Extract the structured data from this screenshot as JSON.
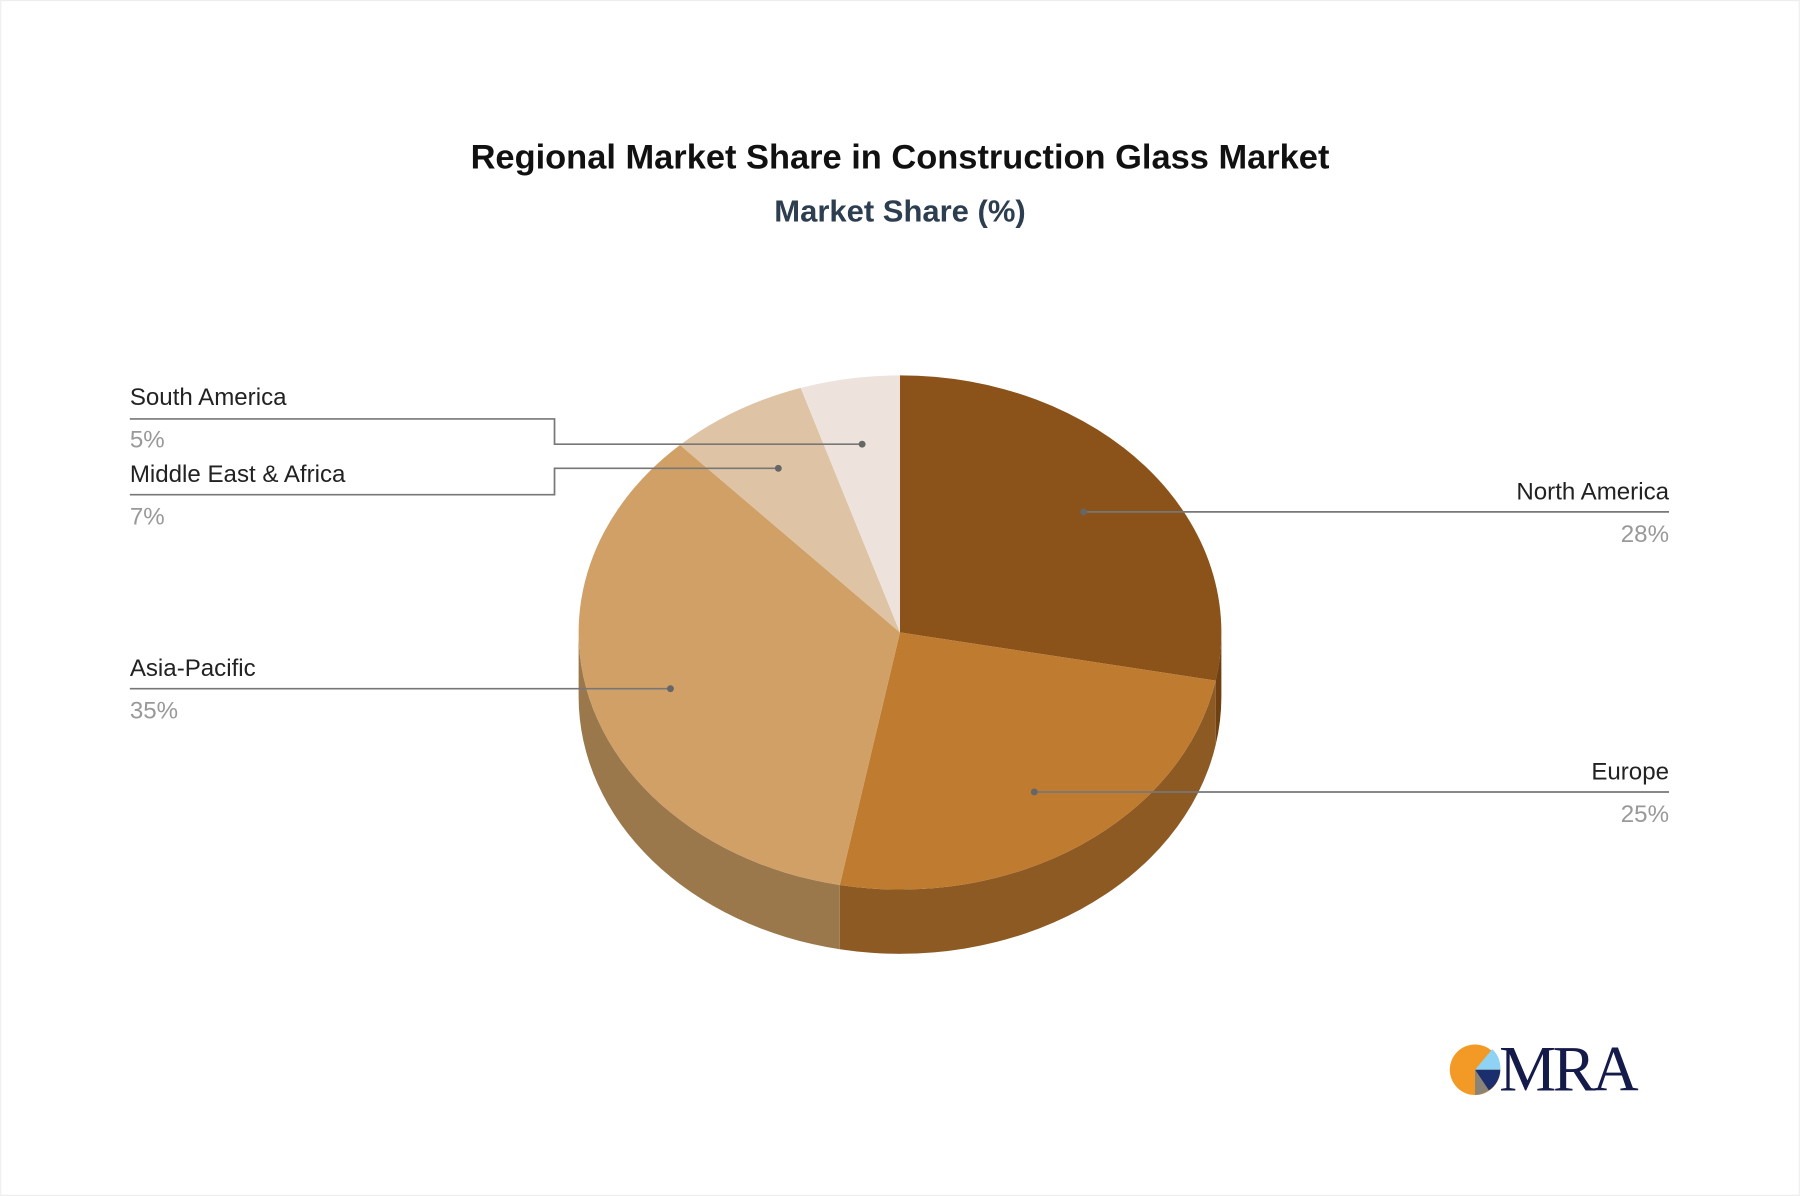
{
  "chart_data": {
    "type": "pie",
    "style": "3d",
    "title": "Regional Market Share in Construction Glass Market",
    "subtitle": "Market Share (%)",
    "slices": [
      {
        "label": "North America",
        "value": 28,
        "display": "28%",
        "color": "#8B5319",
        "side_color": "#6E4012"
      },
      {
        "label": "Europe",
        "value": 25,
        "display": "25%",
        "color": "#BF7B30",
        "side_color": "#8E5A23"
      },
      {
        "label": "Asia-Pacific",
        "value": 35,
        "display": "35%",
        "color": "#D1A067",
        "side_color": "#9A784B"
      },
      {
        "label": "Middle East & Africa",
        "value": 7,
        "display": "7%",
        "color": "#DEC3A5",
        "side_color": "#A89276"
      },
      {
        "label": "South America",
        "value": 5,
        "display": "5%",
        "color": "#EDE3DC",
        "side_color": "#B5ABA4"
      }
    ],
    "legend": "none",
    "labels": "outside-with-leader-lines"
  },
  "logo": {
    "text": "MRA",
    "colors": [
      "#F39A26",
      "#8FD3F4",
      "#1B2F6E",
      "#8A8378"
    ]
  }
}
